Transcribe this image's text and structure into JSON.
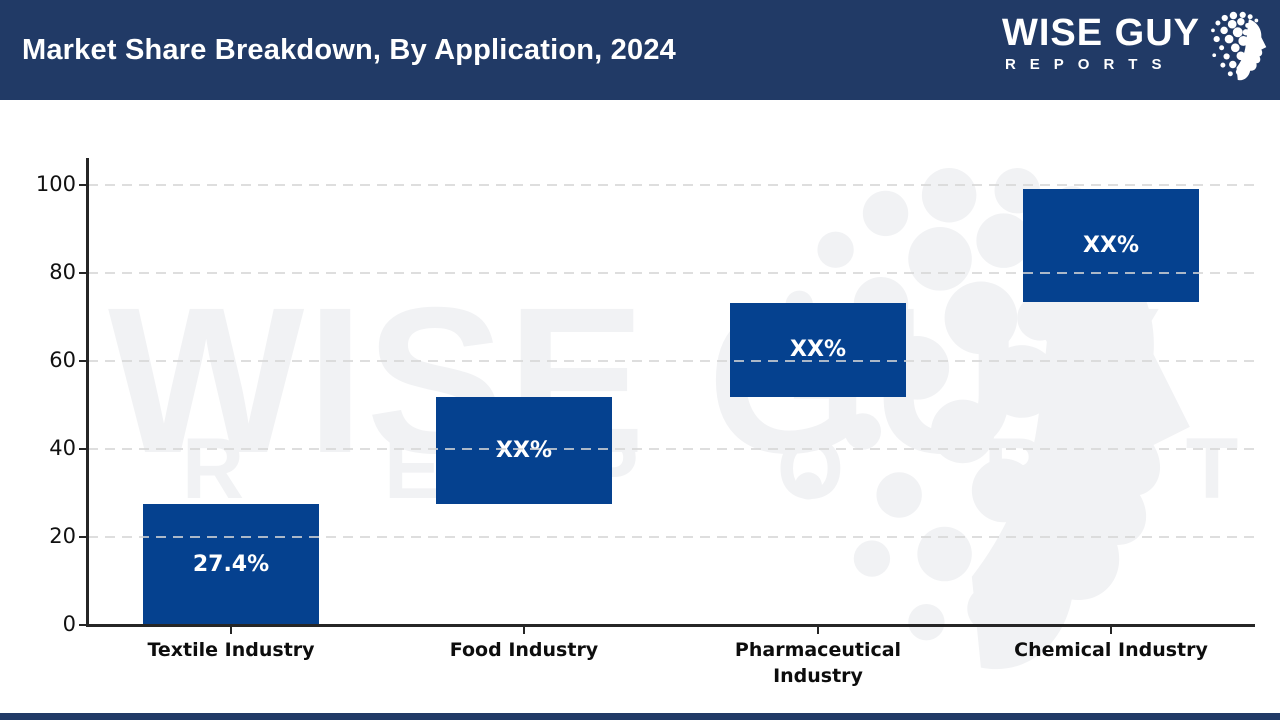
{
  "header": {
    "title": "Market Share Breakdown, By Application, 2024",
    "bg_color": "#213a66",
    "brand": {
      "line1": "WISE GUY",
      "line2": "REPORTS"
    }
  },
  "watermark": {
    "line1": "WISE GUY",
    "line2": "R E P O R T S"
  },
  "footer": {
    "bg_color": "#213a66"
  },
  "chart_data": {
    "type": "bar",
    "subtype": "floating-waterfall",
    "title": "Market Share Breakdown, By Application, 2024",
    "categories": [
      "Textile Industry",
      "Food Industry",
      "Pharmaceutical Industry",
      "Chemical Industry"
    ],
    "segments": [
      {
        "category": "Textile Industry",
        "start": 0,
        "end": 27.4,
        "label": "27.4%"
      },
      {
        "category": "Food Industry",
        "start": 27.4,
        "end": 51.8,
        "label": "XX%"
      },
      {
        "category": "Pharmaceutical Industry",
        "start": 51.8,
        "end": 73.2,
        "label": "XX%"
      },
      {
        "category": "Chemical Industry",
        "start": 73.4,
        "end": 99.2,
        "label": "XX%"
      }
    ],
    "bar_color": "#05418f",
    "label_color": "#ffffff",
    "ylim": [
      0,
      105
    ],
    "yticks": [
      0,
      20,
      40,
      60,
      80,
      100
    ],
    "grid": "horizontal dashed, light gray, drawn over bars",
    "legend": "none",
    "xlabel": "",
    "ylabel": ""
  }
}
